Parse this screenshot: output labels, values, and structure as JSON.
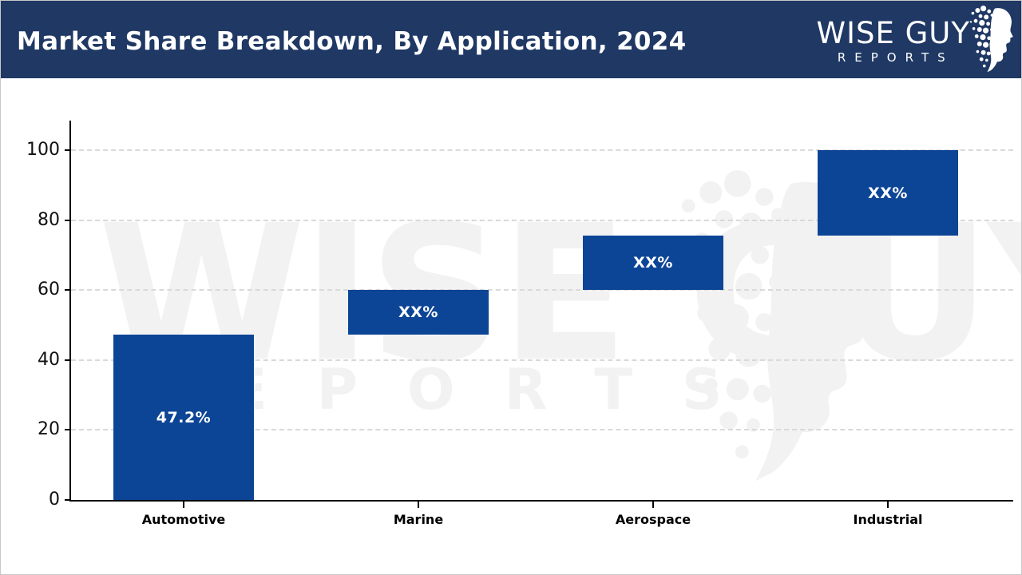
{
  "header": {
    "title": "Market Share Breakdown, By Application, 2024",
    "logo": {
      "line1": "WISE GUY",
      "line2": "REPORTS"
    }
  },
  "watermark": {
    "line1": "WISE GUY",
    "line2": "REPORTS"
  },
  "chart_data": {
    "type": "bar",
    "subtype": "waterfall",
    "title": "Market Share Breakdown, By Application, 2024",
    "xlabel": "",
    "ylabel": "",
    "categories": [
      "Automotive",
      "Marine",
      "Aerospace",
      "Industrial"
    ],
    "segments": [
      {
        "category": "Automotive",
        "start": 0,
        "end": 47.2,
        "value": 47.2,
        "label": "47.2%"
      },
      {
        "category": "Marine",
        "start": 47.2,
        "end": 60,
        "value": 12.8,
        "label": "XX%"
      },
      {
        "category": "Aerospace",
        "start": 60,
        "end": 75.5,
        "value": 15.5,
        "label": "XX%"
      },
      {
        "category": "Industrial",
        "start": 75.5,
        "end": 100,
        "value": 24.5,
        "label": "XX%"
      }
    ],
    "yticks": [
      0,
      20,
      40,
      60,
      80,
      100
    ],
    "ylim": [
      0,
      108
    ],
    "grid": "horizontal-dashed",
    "legend": "none",
    "bar_color": "#0d4596",
    "value_label_color": "#ffffff"
  },
  "colors": {
    "header_bg": "#1f3864",
    "bar": "#0d4596",
    "grid": "#d9d9d9",
    "watermark": "#f2f2f3",
    "axis": "#000000",
    "frame": "#c9c9c9"
  }
}
